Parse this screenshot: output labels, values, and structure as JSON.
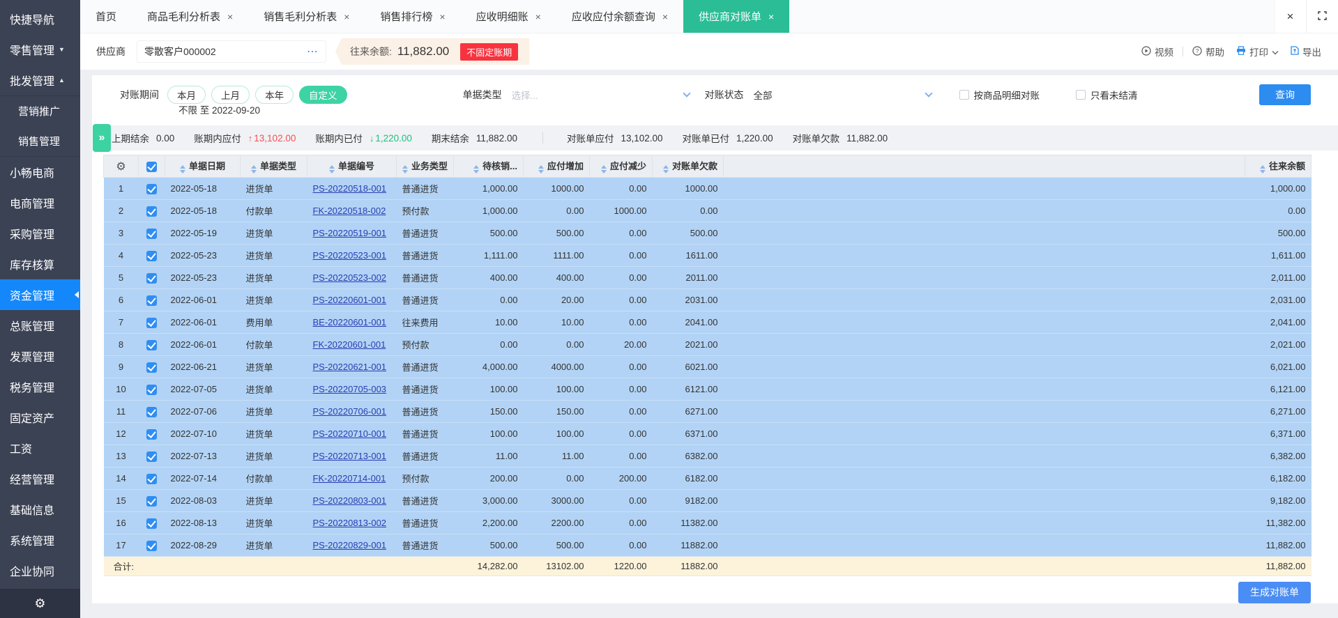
{
  "colors": {
    "sidebar_bg": "#3b4254",
    "sidebar_active": "#1488fb",
    "tab_active_green": "#2bbd96",
    "pill_active_green": "#3ed3a4",
    "expander_teal": "#3cd2a2",
    "badge_red": "#f8333f",
    "amount_red": "#fb4d52",
    "amount_green": "#1fc07a",
    "row_selected_blue": "#b2d3f5",
    "totals_cream": "#fcf3da",
    "primary_blue": "#2d8cf0"
  },
  "icons": {
    "window_close": "×",
    "fullscreen": "corner-frame",
    "more": "⋯",
    "settings": "⚙",
    "expander": "»",
    "up_arrow": "↑",
    "down_arrow": "↓"
  },
  "sidebar": {
    "items": [
      {
        "label": "快捷导航"
      },
      {
        "label": "零售管理",
        "chevron": "down"
      },
      {
        "label": "批发管理",
        "chevron": "up"
      },
      {
        "label": "营销推广",
        "sub": true,
        "div_top": true
      },
      {
        "label": "销售管理",
        "sub": true,
        "div_bottom": true
      },
      {
        "label": "小畅电商"
      },
      {
        "label": "电商管理"
      },
      {
        "label": "采购管理"
      },
      {
        "label": "库存核算"
      },
      {
        "label": "资金管理",
        "active": true
      },
      {
        "label": "总账管理"
      },
      {
        "label": "发票管理"
      },
      {
        "label": "税务管理"
      },
      {
        "label": "固定资产"
      },
      {
        "label": "工资"
      },
      {
        "label": "经营管理"
      },
      {
        "label": "基础信息"
      },
      {
        "label": "系统管理"
      },
      {
        "label": "企业协同"
      }
    ]
  },
  "tabs": {
    "items": [
      {
        "label": "首页",
        "closable": false,
        "active": false
      },
      {
        "label": "商品毛利分析表",
        "closable": true,
        "active": false
      },
      {
        "label": "销售毛利分析表",
        "closable": true,
        "active": false
      },
      {
        "label": "销售排行榜",
        "closable": true,
        "active": false
      },
      {
        "label": "应收明细账",
        "closable": true,
        "active": false
      },
      {
        "label": "应收应付余额查询",
        "closable": true,
        "active": false
      },
      {
        "label": "供应商对账单",
        "closable": true,
        "active": true
      }
    ]
  },
  "header": {
    "supplier_label": "供应商",
    "supplier_value": "零散客户000002",
    "more_icon": "⋯",
    "balance_label": "往来余额:",
    "balance_value": "11,882.00",
    "badge": "不固定账期",
    "toolbar": {
      "video": "视频",
      "help": "帮助",
      "print": "打印",
      "export": "导出"
    }
  },
  "filters": {
    "period_label": "对账期间",
    "period_options": [
      "本月",
      "上月",
      "本年"
    ],
    "period_active": "自定义",
    "period_range": "不限 至 2022-09-20",
    "doc_type_label": "单据类型",
    "doc_type_placeholder": "选择...",
    "status_label": "对账状态",
    "status_value": "全部",
    "checkbox_detail": "按商品明细对账",
    "checkbox_unsettled": "只看未结清",
    "search_button": "查询"
  },
  "summary": {
    "items": [
      {
        "label": "上期结余",
        "value": "0.00"
      },
      {
        "label": "账期内应付",
        "value": "13,102.00",
        "arrow": "up",
        "tone": "red"
      },
      {
        "label": "账期内已付",
        "value": "1,220.00",
        "arrow": "down",
        "tone": "green"
      },
      {
        "label": "期末结余",
        "value": "11,882.00"
      },
      {
        "divider": true
      },
      {
        "label": "对账单应付",
        "value": "13,102.00"
      },
      {
        "label": "对账单已付",
        "value": "1,220.00"
      },
      {
        "label": "对账单欠款",
        "value": "11,882.00"
      }
    ]
  },
  "table": {
    "columns": [
      {
        "label": "单据日期"
      },
      {
        "label": "单据类型"
      },
      {
        "label": "单据编号"
      },
      {
        "label": "业务类型"
      },
      {
        "label": "待核销...",
        "align": "right"
      },
      {
        "label": "应付增加",
        "align": "right"
      },
      {
        "label": "应付减少",
        "align": "right"
      },
      {
        "label": "对账单欠款",
        "align": "right"
      }
    ],
    "balance_column": {
      "label": "往来余额",
      "align": "right"
    },
    "rows": [
      {
        "seq": "1",
        "date": "2022-05-18",
        "type": "进货单",
        "doc": "PS-20220518-001",
        "biz": "普通进货",
        "pending": "1,000.00",
        "add": "1000.00",
        "sub": "0.00",
        "owe": "1000.00",
        "balance": "1,000.00"
      },
      {
        "seq": "2",
        "date": "2022-05-18",
        "type": "付款单",
        "doc": "FK-20220518-002",
        "biz": "预付款",
        "pending": "1,000.00",
        "add": "0.00",
        "sub": "1000.00",
        "owe": "0.00",
        "balance": "0.00"
      },
      {
        "seq": "3",
        "date": "2022-05-19",
        "type": "进货单",
        "doc": "PS-20220519-001",
        "biz": "普通进货",
        "pending": "500.00",
        "add": "500.00",
        "sub": "0.00",
        "owe": "500.00",
        "balance": "500.00"
      },
      {
        "seq": "4",
        "date": "2022-05-23",
        "type": "进货单",
        "doc": "PS-20220523-001",
        "biz": "普通进货",
        "pending": "1,111.00",
        "add": "1111.00",
        "sub": "0.00",
        "owe": "1611.00",
        "balance": "1,611.00"
      },
      {
        "seq": "5",
        "date": "2022-05-23",
        "type": "进货单",
        "doc": "PS-20220523-002",
        "biz": "普通进货",
        "pending": "400.00",
        "add": "400.00",
        "sub": "0.00",
        "owe": "2011.00",
        "balance": "2,011.00"
      },
      {
        "seq": "6",
        "date": "2022-06-01",
        "type": "进货单",
        "doc": "PS-20220601-001",
        "biz": "普通进货",
        "pending": "0.00",
        "add": "20.00",
        "sub": "0.00",
        "owe": "2031.00",
        "balance": "2,031.00"
      },
      {
        "seq": "7",
        "date": "2022-06-01",
        "type": "费用单",
        "doc": "BE-20220601-001",
        "biz": "往来费用",
        "pending": "10.00",
        "add": "10.00",
        "sub": "0.00",
        "owe": "2041.00",
        "balance": "2,041.00"
      },
      {
        "seq": "8",
        "date": "2022-06-01",
        "type": "付款单",
        "doc": "FK-20220601-001",
        "biz": "预付款",
        "pending": "0.00",
        "add": "0.00",
        "sub": "20.00",
        "owe": "2021.00",
        "balance": "2,021.00"
      },
      {
        "seq": "9",
        "date": "2022-06-21",
        "type": "进货单",
        "doc": "PS-20220621-001",
        "biz": "普通进货",
        "pending": "4,000.00",
        "add": "4000.00",
        "sub": "0.00",
        "owe": "6021.00",
        "balance": "6,021.00"
      },
      {
        "seq": "10",
        "date": "2022-07-05",
        "type": "进货单",
        "doc": "PS-20220705-003",
        "biz": "普通进货",
        "pending": "100.00",
        "add": "100.00",
        "sub": "0.00",
        "owe": "6121.00",
        "balance": "6,121.00"
      },
      {
        "seq": "11",
        "date": "2022-07-06",
        "type": "进货单",
        "doc": "PS-20220706-001",
        "biz": "普通进货",
        "pending": "150.00",
        "add": "150.00",
        "sub": "0.00",
        "owe": "6271.00",
        "balance": "6,271.00"
      },
      {
        "seq": "12",
        "date": "2022-07-10",
        "type": "进货单",
        "doc": "PS-20220710-001",
        "biz": "普通进货",
        "pending": "100.00",
        "add": "100.00",
        "sub": "0.00",
        "owe": "6371.00",
        "balance": "6,371.00"
      },
      {
        "seq": "13",
        "date": "2022-07-13",
        "type": "进货单",
        "doc": "PS-20220713-001",
        "biz": "普通进货",
        "pending": "11.00",
        "add": "11.00",
        "sub": "0.00",
        "owe": "6382.00",
        "balance": "6,382.00"
      },
      {
        "seq": "14",
        "date": "2022-07-14",
        "type": "付款单",
        "doc": "FK-20220714-001",
        "biz": "预付款",
        "pending": "200.00",
        "add": "0.00",
        "sub": "200.00",
        "owe": "6182.00",
        "balance": "6,182.00"
      },
      {
        "seq": "15",
        "date": "2022-08-03",
        "type": "进货单",
        "doc": "PS-20220803-001",
        "biz": "普通进货",
        "pending": "3,000.00",
        "add": "3000.00",
        "sub": "0.00",
        "owe": "9182.00",
        "balance": "9,182.00"
      },
      {
        "seq": "16",
        "date": "2022-08-13",
        "type": "进货单",
        "doc": "PS-20220813-002",
        "biz": "普通进货",
        "pending": "2,200.00",
        "add": "2200.00",
        "sub": "0.00",
        "owe": "11382.00",
        "balance": "11,382.00"
      },
      {
        "seq": "17",
        "date": "2022-08-29",
        "type": "进货单",
        "doc": "PS-20220829-001",
        "biz": "普通进货",
        "pending": "500.00",
        "add": "500.00",
        "sub": "0.00",
        "owe": "11882.00",
        "balance": "11,882.00"
      }
    ],
    "totals": {
      "label": "合计:",
      "pending": "14,282.00",
      "add": "13102.00",
      "sub": "1220.00",
      "owe": "11882.00",
      "balance": "11,882.00"
    }
  },
  "footer": {
    "generate_button": "生成对账单"
  }
}
